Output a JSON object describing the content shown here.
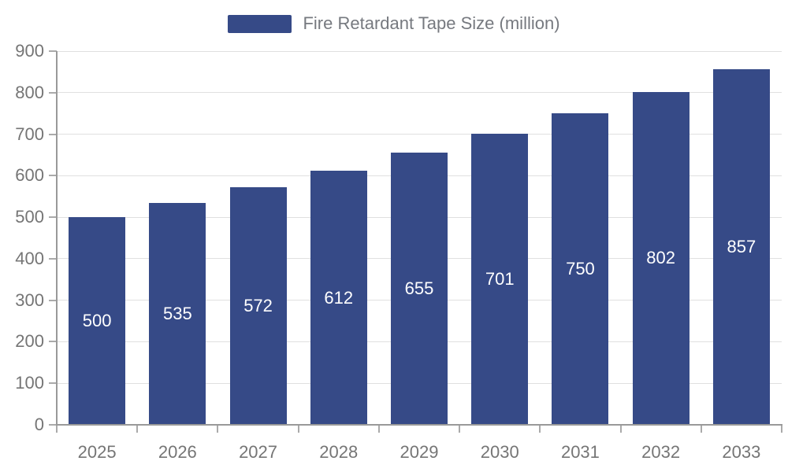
{
  "chart_data": {
    "type": "bar",
    "title": "Fire Retardant Tape Size (million)",
    "categories": [
      "2025",
      "2026",
      "2027",
      "2028",
      "2029",
      "2030",
      "2031",
      "2032",
      "2033"
    ],
    "values": [
      500,
      535,
      572,
      612,
      655,
      701,
      750,
      802,
      857
    ],
    "xlabel": "",
    "ylabel": "",
    "ylim": [
      0,
      900
    ],
    "ytick_step": 100,
    "yticks": [
      0,
      100,
      200,
      300,
      400,
      500,
      600,
      700,
      800,
      900
    ],
    "grid": true,
    "legend_position": "top-center",
    "colors": {
      "bar": "#364A87",
      "grid": "#e0e0e0",
      "axis": "#999999",
      "tick": "#aaaaaa",
      "axis_text": "#757575",
      "legend_text": "#76797f",
      "value_label": "#ffffff",
      "background": "#ffffff"
    }
  }
}
